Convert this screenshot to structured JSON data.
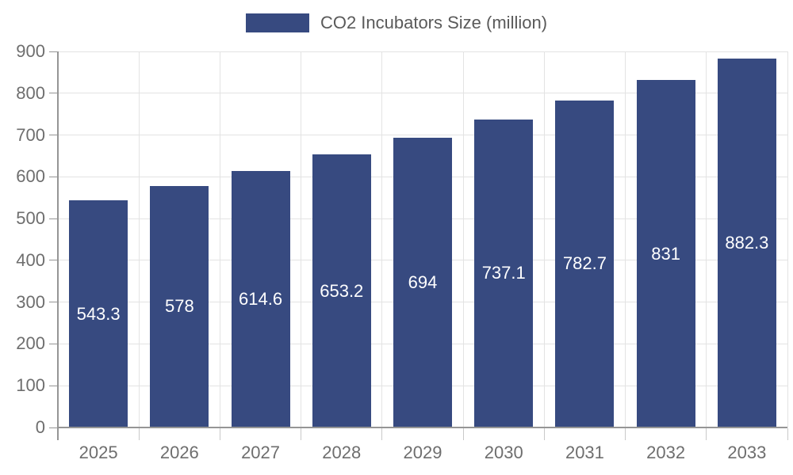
{
  "legend": {
    "label": "CO2 Incubators Size (million)"
  },
  "chart_data": {
    "type": "bar",
    "title": "CO2 Incubators Size (million)",
    "xlabel": "",
    "ylabel": "",
    "categories": [
      "2025",
      "2026",
      "2027",
      "2028",
      "2029",
      "2030",
      "2031",
      "2032",
      "2033"
    ],
    "values": [
      543.3,
      578,
      614.6,
      653.2,
      694,
      737.1,
      782.7,
      831,
      882.3
    ],
    "series": [
      {
        "name": "CO2 Incubators Size (million)",
        "values": [
          543.3,
          578,
          614.6,
          653.2,
          694,
          737.1,
          782.7,
          831,
          882.3
        ]
      }
    ],
    "ylim": [
      0,
      900
    ],
    "yticks": [
      0,
      100,
      200,
      300,
      400,
      500,
      600,
      700,
      800,
      900
    ],
    "grid": true,
    "legend_position": "top-center",
    "bar_label_position": "inside-center",
    "colors": {
      "bar": "#374a80",
      "bar_label": "#ffffff",
      "grid": "#e3e3e3",
      "axis": "#959595",
      "tick": "#c9c9c9",
      "axis_label": "#6e6e6e",
      "legend_text": "#5a5a5a"
    }
  }
}
